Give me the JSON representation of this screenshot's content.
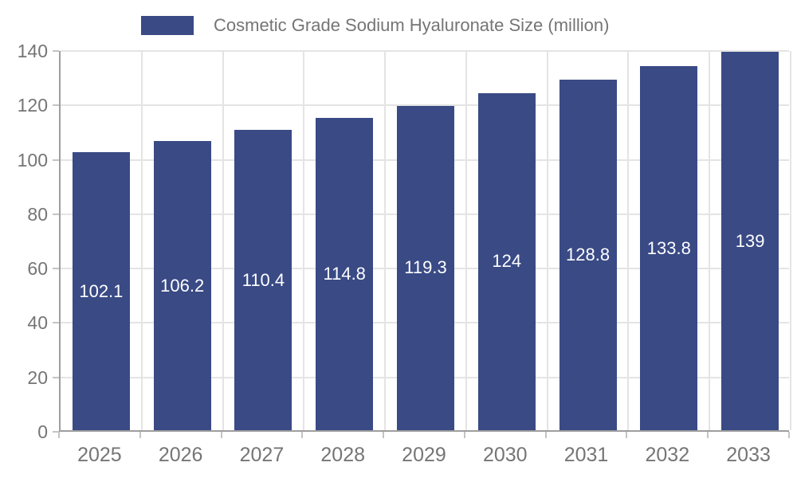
{
  "legend": {
    "label": "Cosmetic Grade Sodium Hyaluronate Size (million)"
  },
  "colors": {
    "bar": "#394a85",
    "grid": "#e4e4e4",
    "axis": "#9e9e9e",
    "tick": "#c4c4c4",
    "axis_text": "#757575",
    "value_label_text": "#ffffff",
    "background": "#ffffff"
  },
  "chart_data": {
    "type": "bar",
    "title": "Cosmetic Grade Sodium Hyaluronate Size (million)",
    "categories": [
      "2025",
      "2026",
      "2027",
      "2028",
      "2029",
      "2030",
      "2031",
      "2032",
      "2033"
    ],
    "values": [
      102.1,
      106.2,
      110.4,
      114.8,
      119.3,
      124,
      128.8,
      133.8,
      139
    ],
    "value_labels": [
      "102.1",
      "106.2",
      "110.4",
      "114.8",
      "119.3",
      "124",
      "128.8",
      "133.8",
      "139"
    ],
    "xlabel": "",
    "ylabel": "",
    "ylim": [
      0,
      140
    ],
    "yticks": [
      0,
      20,
      40,
      60,
      80,
      100,
      120,
      140
    ],
    "grid": true,
    "legend_position": "top",
    "value_label_position": "inside-center"
  }
}
